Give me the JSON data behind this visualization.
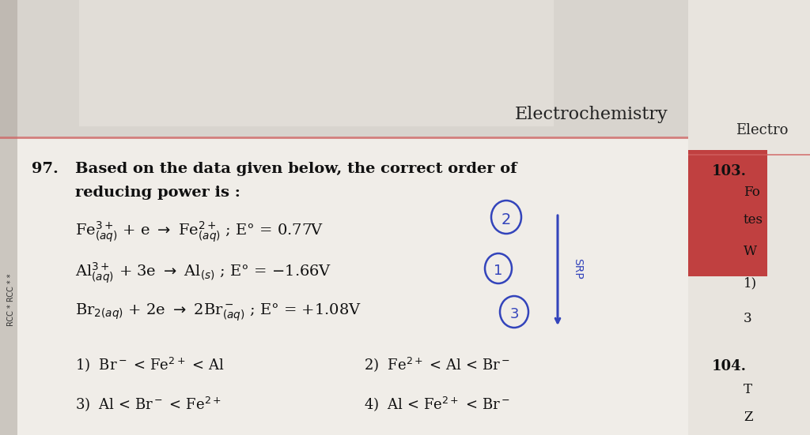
{
  "bg_outer": "#b8b0a8",
  "bg_left_shadow": "#c8c0b8",
  "bg_page": "#f0ede8",
  "bg_page_top": "#dedad4",
  "bg_right_panel": "#e8e4de",
  "red_bar_color": "#c04040",
  "title": "Electrochemistry",
  "title_right": "Electro",
  "title_fontsize": 16,
  "title_color": "#222222",
  "q_num": "97.",
  "q_line1": "Based on the data given below, the correct order of",
  "q_line2": "reducing power is :",
  "eq1": "Fe$^{3+}_{\\,(aq)}$ + e $\\rightarrow$ Fe$^{2+}_{\\,(aq)}$ ; E° = 0.77V",
  "eq2": "Al$^{3+}_{\\,(aq)}$ + 3e $\\rightarrow$ Al$_{(s)}$ ; E° = $-$1.66V",
  "eq3": "Br$_{2(aq)}$ + 2e $\\rightarrow$ 2Br$^-_{\\,(aq)}$ ; E° = +1.08V",
  "opt1": "1)  Br$^-$ < Fe$^{2+}$ < Al",
  "opt2": "2)  Fe$^{2+}$ < Al < Br$^-$",
  "opt3": "3)  Al < Br$^-$ < Fe$^{2+}$",
  "opt4": "4)  Al < Fe$^{2+}$ < Br$^-$",
  "right_103": "103.",
  "right_Fo": "Fo",
  "right_tes": "tes",
  "right_W": "W",
  "right_1": "1)",
  "right_3": "3",
  "right_104": "104.",
  "right_T": "T",
  "right_Z": "Z",
  "side_text": "RCC * RCC * *",
  "body_fs": 13,
  "opt_fs": 12,
  "ann_color": "#3344bb"
}
